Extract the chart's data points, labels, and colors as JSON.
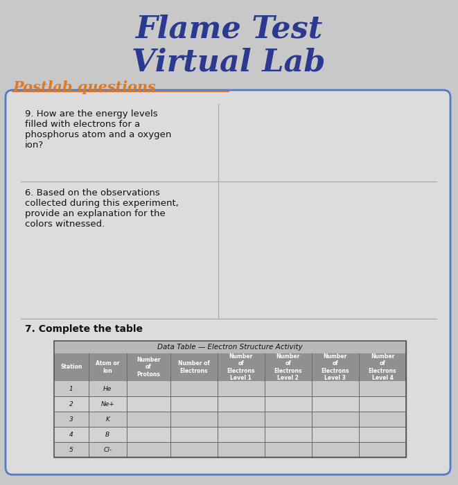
{
  "title_line1": "Flame Test",
  "title_line2": "Virtual Lab",
  "subtitle": "Postlab questions",
  "title_color": "#2b3a8f",
  "subtitle_color": "#e07820",
  "bg_color": "#c8c8c8",
  "card_border": "#5577cc",
  "q9_text": "9. How are the energy levels\nfilled with electrons for a\nphosphorus atom and a oxygen\nion?",
  "q6_text": "6. Based on the observations\ncollected during this experiment,\nprovide an explanation for the\ncolors witnessed.",
  "q7_text": "7. Complete the table",
  "table_title": "Data Table — Electron Structure Activity",
  "col_headers": [
    "Station",
    "Atom or\nIon",
    "Number\nof\nProtons",
    "Number of\nElectrons",
    "Number\nof\nElectrons\nLevel 1",
    "Number\nof\nElectrons\nLevel 2",
    "Number\nof\nElectrons\nLevel 3",
    "Number\nof\nElectrons\nLevel 4"
  ],
  "row_data": [
    [
      "1",
      "He",
      "",
      "",
      "",
      "",
      "",
      ""
    ],
    [
      "2",
      "Ne+",
      "",
      "",
      "",
      "",
      "",
      ""
    ],
    [
      "3",
      "K",
      "",
      "",
      "",
      "",
      "",
      ""
    ],
    [
      "4",
      "B",
      "",
      "",
      "",
      "",
      "",
      ""
    ],
    [
      "5",
      "Cl-",
      "",
      "",
      "",
      "",
      "",
      ""
    ]
  ],
  "header_bg": "#888888",
  "table_bg": "#d0d0d0"
}
